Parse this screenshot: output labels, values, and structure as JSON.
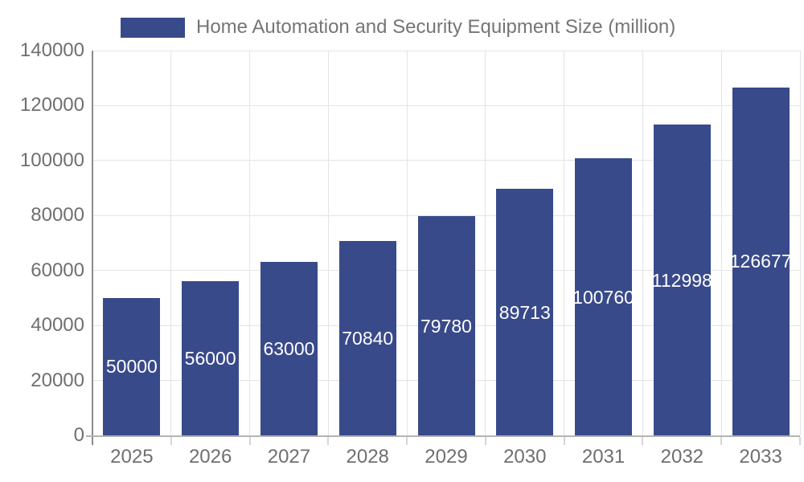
{
  "chart_data": {
    "type": "bar",
    "title": "Home Automation and Security Equipment Size (million)",
    "categories": [
      "2025",
      "2026",
      "2027",
      "2028",
      "2029",
      "2030",
      "2031",
      "2032",
      "2033"
    ],
    "values": [
      50000,
      56000,
      63000,
      70840,
      79780,
      89713,
      100760,
      112998,
      126677
    ],
    "xlabel": "",
    "ylabel": "",
    "ylim": [
      0,
      140000
    ],
    "yticks": [
      0,
      20000,
      40000,
      60000,
      80000,
      100000,
      120000,
      140000
    ],
    "grid": true,
    "legend_position": "top",
    "bar_labels_visible": true,
    "colors": {
      "bar_fill": "#394a8b",
      "bar_label_text": "#ffffff",
      "axis_tick_text": "#6f6f6f",
      "legend_text": "#757575",
      "gridline": "#e4e4e4",
      "y_axis_line": "#8c8c8c",
      "x_axis_line": "#b3b3b3",
      "background": "#ffffff"
    }
  }
}
